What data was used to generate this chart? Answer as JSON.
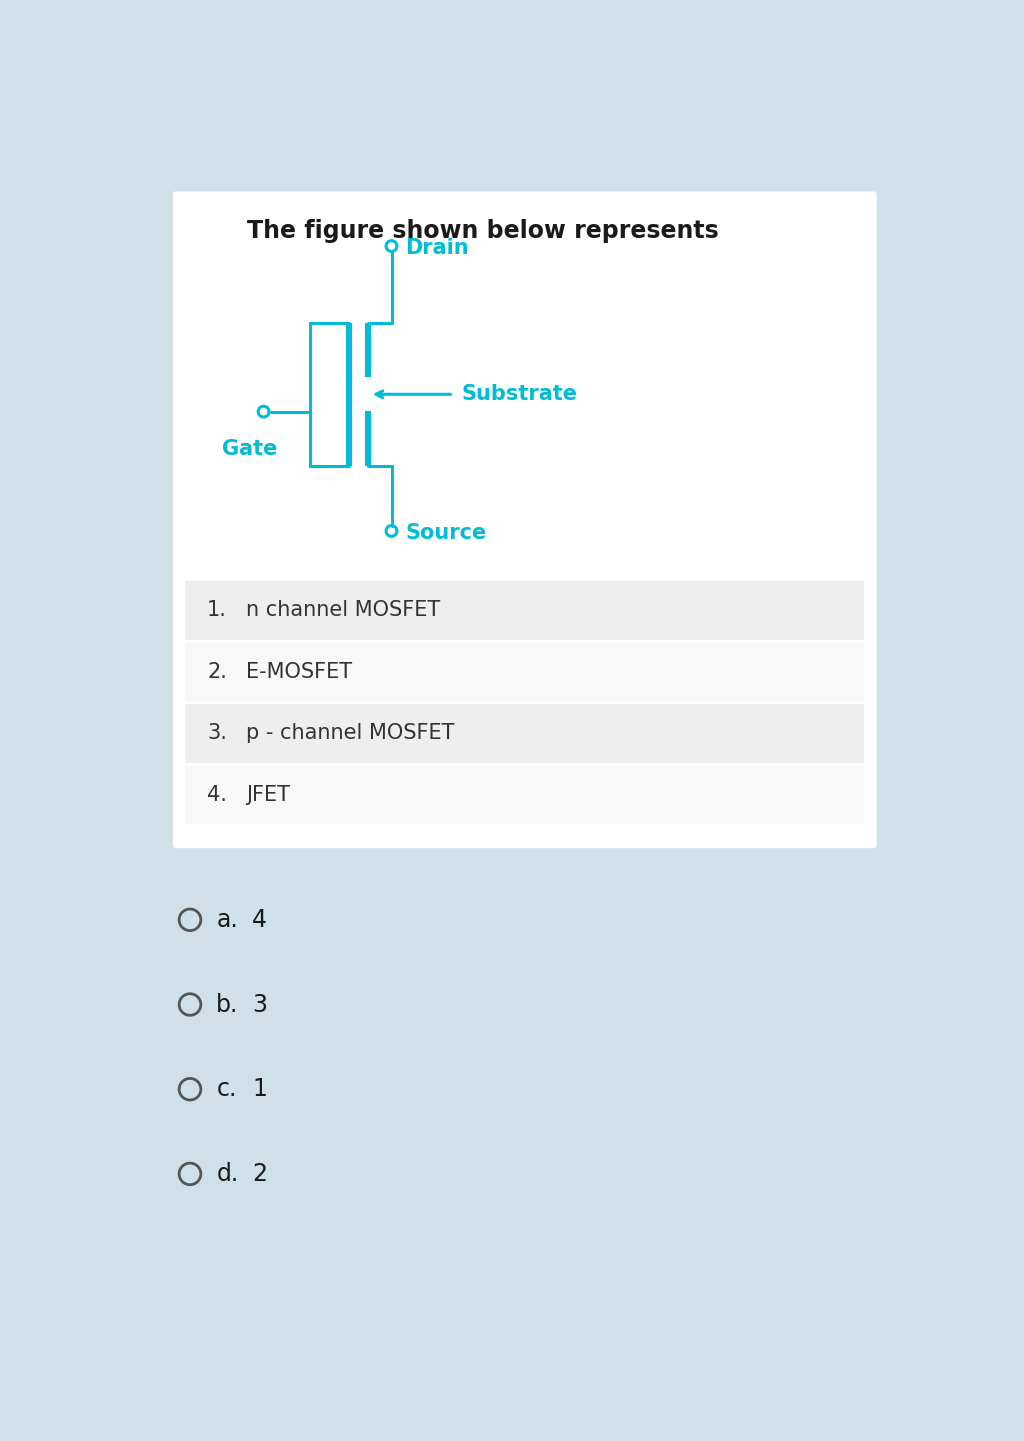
{
  "title": "The figure shown below represents",
  "title_fontsize": 17,
  "title_fontweight": "bold",
  "title_color": "#1a1a1a",
  "bg_color": "#cfe0e8",
  "circuit_color": "#00bcd4",
  "options_list": [
    {
      "num": "1.",
      "text": "n channel MOSFET"
    },
    {
      "num": "2.",
      "text": "E-MOSFET"
    },
    {
      "num": "3.",
      "text": "p - channel MOSFET"
    },
    {
      "num": "4.",
      "text": "JFET"
    }
  ],
  "answers": [
    {
      "label": "a.",
      "value": "4"
    },
    {
      "label": "b.",
      "value": "3"
    },
    {
      "label": "c.",
      "value": "1"
    },
    {
      "label": "d.",
      "value": "2"
    }
  ],
  "answer_text_color": "#1a1a1a",
  "answer_fontsize": 17,
  "option_fontsize": 15,
  "card_bg": "#ffffff",
  "option_row_bg": "#eeeeee",
  "option_alt_bg": "#f8f8f8"
}
